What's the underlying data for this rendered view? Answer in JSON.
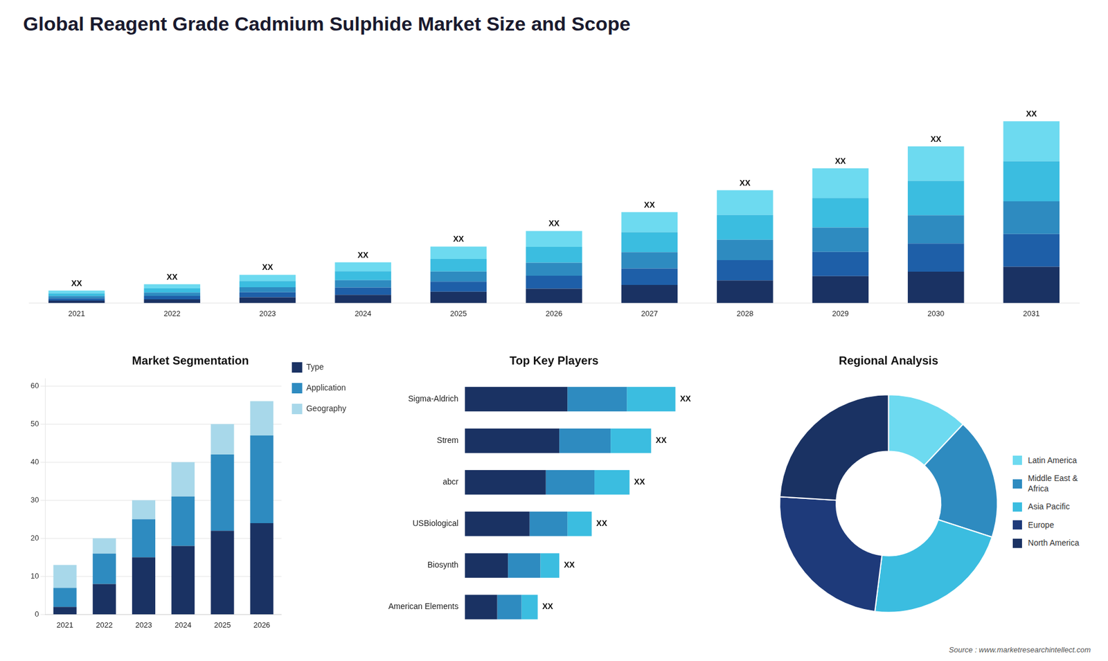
{
  "title": "Global  Reagent Grade Cadmium Sulphide Market Size and Scope",
  "annotations": [
    {
      "text": "Source : www.marketresearchintellect.com"
    }
  ],
  "chart_data": [
    {
      "type": "bar",
      "categories": [
        "2021",
        "2022",
        "2023",
        "2024",
        "2025",
        "2026",
        "2027",
        "2028",
        "2029",
        "2030",
        "2031"
      ],
      "stacked": true,
      "series": [
        {
          "color": "#1a3263",
          "values": [
            0.8,
            1.2,
            1.8,
            2.6,
            3.6,
            4.6,
            5.8,
            7.2,
            8.6,
            10,
            11.6
          ]
        },
        {
          "color": "#1e5fa8",
          "values": [
            0.72,
            1.08,
            1.62,
            2.34,
            3.24,
            4.14,
            5.22,
            6.48,
            7.74,
            9,
            10.44
          ]
        },
        {
          "color": "#2e8bc0",
          "values": [
            0.72,
            1.08,
            1.62,
            2.34,
            3.24,
            4.14,
            5.22,
            6.48,
            7.74,
            9,
            10.44
          ]
        },
        {
          "color": "#3bbde0",
          "values": [
            0.88,
            1.32,
            1.98,
            2.86,
            3.96,
            5.06,
            6.38,
            7.92,
            9.46,
            11,
            12.76
          ]
        },
        {
          "color": "#6ddaf0",
          "values": [
            0.88,
            1.32,
            1.98,
            2.86,
            3.96,
            5.06,
            6.38,
            7.92,
            9.46,
            11,
            12.76
          ],
          "value_labels": [
            "XX",
            "XX",
            "XX",
            "XX",
            "XX",
            "XX",
            "XX",
            "XX",
            "XX",
            "XX",
            "XX"
          ]
        }
      ],
      "ylim": [
        0,
        78.3
      ],
      "grid": false,
      "tick_labels": "x"
    },
    {
      "type": "bar",
      "title": "Market Segmentation",
      "categories": [
        "2021",
        "2022",
        "2023",
        "2024",
        "2025",
        "2026"
      ],
      "stacked": true,
      "series": [
        {
          "name": "Type",
          "color": "#1a3263",
          "values": [
            2,
            8,
            15,
            18,
            22,
            24
          ]
        },
        {
          "name": "Application",
          "color": "#2e8bc0",
          "values": [
            5,
            8,
            10,
            13,
            20,
            23
          ]
        },
        {
          "name": "Geography",
          "color": "#a8d8ea",
          "values": [
            6,
            4,
            5,
            9,
            8,
            9
          ]
        }
      ],
      "ylim": [
        0,
        62
      ],
      "yticks": [
        0,
        10,
        20,
        30,
        40,
        50,
        60
      ],
      "grid": true,
      "legend": "right"
    },
    {
      "type": "bar",
      "title": "Top Key Players",
      "orientation": "horizontal",
      "stacked": true,
      "categories": [
        "Sigma-Aldrich",
        "Strem",
        "abcr",
        "USBiological",
        "Biosynth",
        "American Elements"
      ],
      "series": [
        {
          "color": "#1a3263",
          "values": [
            38,
            35,
            30,
            24,
            16,
            12
          ]
        },
        {
          "color": "#2e8bc0",
          "values": [
            22,
            19,
            18,
            14,
            12,
            9
          ]
        },
        {
          "color": "#3bbde0",
          "values": [
            18,
            15,
            13,
            9,
            7,
            6
          ],
          "value_labels": [
            "XX",
            "XX",
            "XX",
            "XX",
            "XX",
            "XX"
          ]
        }
      ],
      "xlim": [
        0,
        95
      ],
      "grid": false,
      "tick_labels": "y"
    },
    {
      "type": "doughnut",
      "title": "Regional Analysis",
      "categories": [
        "Latin America",
        "Middle East &\nAfrica",
        "Asia Pacific",
        "Europe",
        "North America"
      ],
      "values": [
        12,
        18,
        22,
        24,
        24
      ],
      "colors": [
        "#6ddaf0",
        "#2e8bc0",
        "#3bbde0",
        "#1e3a7a",
        "#1a3263"
      ],
      "legend": "right"
    }
  ]
}
